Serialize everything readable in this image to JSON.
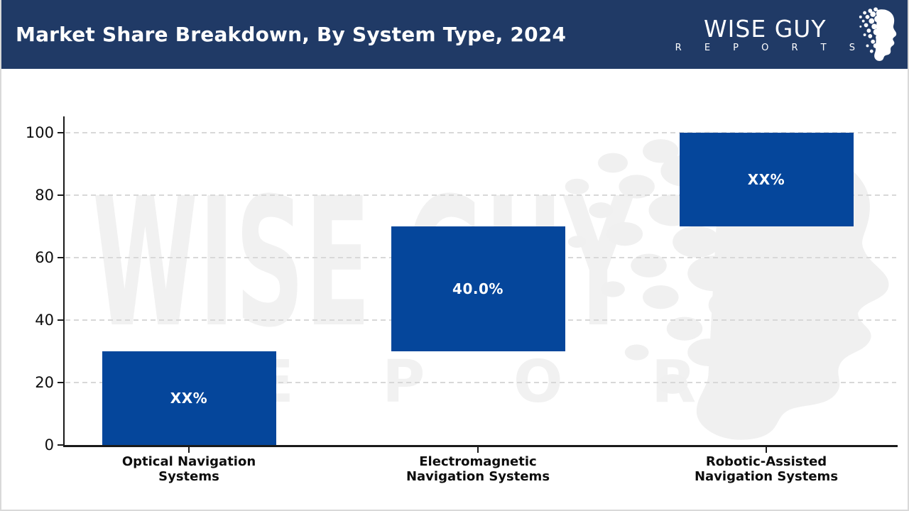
{
  "header": {
    "title": "Market Share Breakdown, By System Type, 2024",
    "logo": {
      "line1": "WISE GUY",
      "line2": "R E P O R T S",
      "icon": "dotted-face-profile"
    }
  },
  "watermark": {
    "line1": "WISE GUY",
    "line2": "R E P O R T S",
    "icon": "dotted-face-profile"
  },
  "colors": {
    "header_bg": "#203a66",
    "bar": "#05469b",
    "bar_label": "#ffffff",
    "grid": "#d8d8d8",
    "axis": "#1a1a1a",
    "watermark": "#f1f1f1",
    "page_border": "#d9d9d9"
  },
  "chart_data": {
    "type": "bar",
    "variant": "floating range bars (waterfall-style market share breakdown)",
    "title": "Market Share Breakdown, By System Type, 2024",
    "categories": [
      {
        "line1": "Optical Navigation",
        "line2": "Systems"
      },
      {
        "line1": "Electromagnetic",
        "line2": "Navigation Systems"
      },
      {
        "line1": "Robotic-Assisted",
        "line2": "Navigation Systems"
      }
    ],
    "series": [
      {
        "name": "Market Share (%)",
        "ranges": [
          [
            0,
            30
          ],
          [
            30,
            70
          ],
          [
            70,
            100
          ]
        ],
        "labels": [
          "XX%",
          "40.0%",
          "XX%"
        ]
      }
    ],
    "xlabel": "",
    "ylabel": "",
    "ylim": [
      0,
      100
    ],
    "yticks": [
      0,
      20,
      40,
      60,
      80,
      100
    ],
    "grid": "horizontal dashed lines",
    "legend": "none"
  }
}
